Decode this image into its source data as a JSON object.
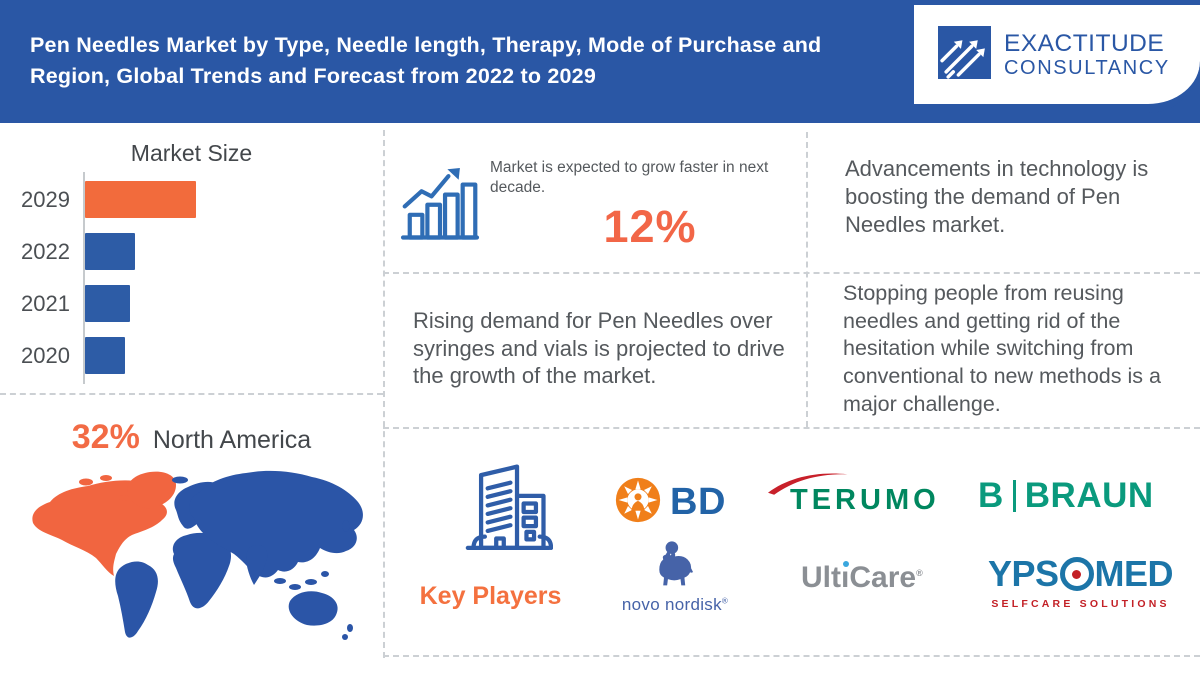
{
  "header": {
    "title": [
      "Pen Needles Market by Type, Needle length, Therapy, Mode of Purchase and",
      "Region, Global Trends and Forecast from 2022 to 2029"
    ],
    "brand": {
      "line1": "EXACTITUDE",
      "line2": "CONSULTANCY"
    }
  },
  "chart_data": {
    "type": "bar",
    "orientation": "horizontal",
    "title": "Market Size",
    "categories": [
      "2029",
      "2022",
      "2021",
      "2020"
    ],
    "relative_values": [
      111,
      50,
      45,
      40
    ],
    "bar_colors": [
      "#f26b3c",
      "#2d5ca6",
      "#2d5ca6",
      "#2d5ca6"
    ],
    "value_axis_labels_shown": false,
    "note": "bar lengths are relative; no numeric axis shown in source"
  },
  "region_highlight": {
    "percent": "32%",
    "label": "North America"
  },
  "growth_card": {
    "text": "Market is expected to grow faster in next decade.",
    "value": "12%"
  },
  "cards": {
    "technology": "Advancements in technology is boosting the demand of Pen Needles market.",
    "demand": "Rising demand for Pen Needles over syringes and vials is projected to drive the growth of the market.",
    "challenge": "Stopping people from reusing needles and getting rid of the hesitation while switching from conventional to new methods is a major challenge."
  },
  "key_players": {
    "title": "Key Players",
    "bd": {
      "text": "BD"
    },
    "terumo": {
      "text": "TERUMO"
    },
    "bbraun": {
      "part1": "B",
      "part2": "BRAUN"
    },
    "novo": {
      "text": "novo nordisk",
      "reg": "®"
    },
    "ulticare": {
      "part1": "Ult",
      "part2": "ı",
      "part3": "Care",
      "reg": "®"
    },
    "ypsomed": {
      "part1": "YPS",
      "part2": "MED",
      "subtitle": "SELFCARE SOLUTIONS"
    }
  },
  "colors": {
    "header_blue": "#2a57a5",
    "accent_orange": "#f26b3c",
    "bar_blue": "#2d5ca6",
    "map_orange": "#f16540",
    "map_blue": "#2b55a7",
    "body_text": "#55595d",
    "bd_blue": "#2263a7",
    "bd_orange": "#f07f1a",
    "terumo_green": "#00875f",
    "terumo_red": "#c8202a",
    "bbraun_green": "#0a9a7d",
    "novo_blue": "#4663a8",
    "ulticare_gray": "#8b8f94",
    "ypsomed_blue": "#1c75a8",
    "ypsomed_red": "#c32026"
  }
}
